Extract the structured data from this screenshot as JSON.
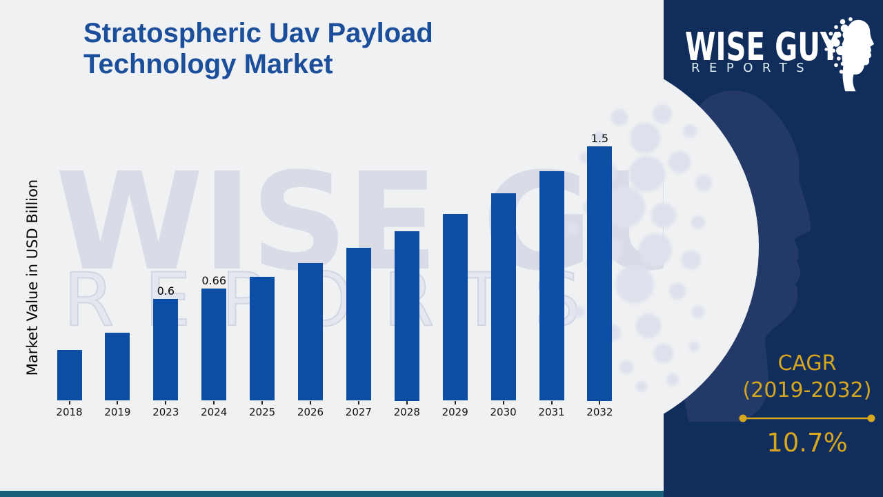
{
  "title": {
    "line1": "Stratospheric Uav Payload",
    "line2": "Technology Market"
  },
  "chart_data": {
    "type": "bar",
    "title": "Stratospheric Uav Payload Technology Market",
    "categories": [
      "2018",
      "2019",
      "2023",
      "2024",
      "2025",
      "2026",
      "2027",
      "2028",
      "2029",
      "2030",
      "2031",
      "2032"
    ],
    "values": [
      0.3,
      0.4,
      0.6,
      0.66,
      0.73,
      0.81,
      0.9,
      1.0,
      1.1,
      1.22,
      1.35,
      1.5
    ],
    "bar_labels": [
      "",
      "",
      "0.6",
      "0.66",
      "",
      "",
      "",
      "",
      "",
      "",
      "",
      "1.5"
    ],
    "xlabel": "",
    "ylabel": "Market Value in USD Billion",
    "ylim": [
      0,
      1.6
    ],
    "grid": false,
    "legend": "none",
    "bar_color": "#0c4da5"
  },
  "watermark": {
    "line1": "WISE GUY",
    "line2": "REPORTS"
  },
  "logo": {
    "wordmark": "WISE GUY",
    "subtext": "REPORTS"
  },
  "cagr": {
    "label": "CAGR",
    "range": "(2019-2032)",
    "value": "10.7%"
  },
  "colors": {
    "background": "#f0f1f2",
    "bar": "#0c4da5",
    "title_text": "#1b4e9b",
    "navy_panel": "#102d5c",
    "panel_silhouette": "#233968",
    "teal_strip": "#175f78",
    "gold": "#d6a61c",
    "watermark": "#d9dce7",
    "logo_text": "#ffffff"
  }
}
